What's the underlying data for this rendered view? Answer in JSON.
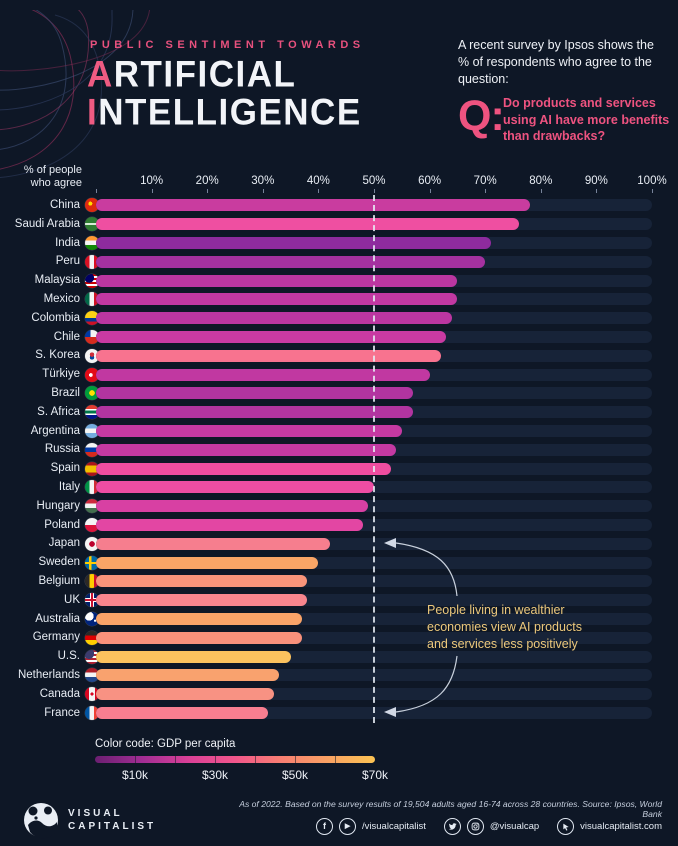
{
  "header": {
    "kicker": "PUBLIC SENTIMENT TOWARDS",
    "title_a": "A",
    "title_rest1": "RTIFICIAL",
    "title_i": "I",
    "title_rest2": "NTELLIGENCE",
    "intro": "A recent survey by Ipsos shows the % of respondents who agree to the question:",
    "q_label": "Q:",
    "question": "Do products and services using AI have more benefits than drawbacks?",
    "accent_pink": "#ee5380"
  },
  "chart_data": {
    "type": "bar",
    "orientation": "horizontal",
    "axis_label_line1": "% of people",
    "axis_label_line2": "who agree",
    "x_ticks": [
      "10%",
      "20%",
      "30%",
      "40%",
      "50%",
      "60%",
      "70%",
      "80%",
      "90%",
      "100%"
    ],
    "xlim": [
      0,
      100
    ],
    "reference_line_pct": 50,
    "grid": false,
    "track_color": "#172338",
    "annotation": "People living in wealthier economies view AI products and services less positively",
    "rows": [
      {
        "country": "China",
        "value": 78,
        "color": "#c93c9f",
        "flag": "radial-gradient(circle at 38% 40%, #ffde00 16%, rgba(0,0,0,0) 17%), #de2910"
      },
      {
        "country": "Saudi Arabia",
        "value": 76,
        "color": "#ef4fa1",
        "flag": "linear-gradient(180deg,#2f7d33 44%,#d7ecd7 44% 58%,#2f7d33 58%)"
      },
      {
        "country": "India",
        "value": 71,
        "color": "#8e2b9e",
        "flag": "linear-gradient(180deg,#ff9933 33%,#f4f4f4 33% 66%,#128807 66%)"
      },
      {
        "country": "Peru",
        "value": 70,
        "color": "#a531a0",
        "flag": "linear-gradient(90deg,#d91023 33%,#f4f4f4 33% 66%,#d91023 66%)"
      },
      {
        "country": "Malaysia",
        "value": 65,
        "color": "#bb36a1",
        "flag": "radial-gradient(circle at 30% 28%, #010066 34%, rgba(0,0,0,0) 35%), repeating-linear-gradient(180deg,#cc0001 0 2px,#ffffff 2px 4px)"
      },
      {
        "country": "Mexico",
        "value": 65,
        "color": "#c238a2",
        "flag": "linear-gradient(90deg,#006847 33%,#f4f4f4 33% 66%,#ce1126 66%)"
      },
      {
        "country": "Colombia",
        "value": 64,
        "color": "#bb36a1",
        "flag": "linear-gradient(180deg,#fcd116 50%,#003893 50% 75%,#ce1126 75%)"
      },
      {
        "country": "Chile",
        "value": 63,
        "color": "#c93aa2",
        "flag": "linear-gradient(180deg,rgba(0,0,0,0) 0 50%,#d52b1e 50%), linear-gradient(90deg,#0039a6 0 38%,#f4f4f4 38%)"
      },
      {
        "country": "S. Korea",
        "value": 62,
        "color": "#f8738f",
        "flag": "radial-gradient(circle at 50% 40%, #cd2e3a 20%, rgba(0,0,0,0) 21%), radial-gradient(circle at 50% 60%, #0047a0 20%, rgba(0,0,0,0) 21%), #f4f4f4"
      },
      {
        "country": "Türkiye",
        "value": 60,
        "color": "#c138a1",
        "flag": "radial-gradient(circle at 42% 50%, #ffffff 17%, rgba(0,0,0,0) 18%), #e30a17"
      },
      {
        "country": "Brazil",
        "value": 57,
        "color": "#b234a0",
        "flag": "radial-gradient(circle at 50% 50%, #ffdf00 28%, rgba(0,0,0,0) 29%), #009c3b"
      },
      {
        "country": "S. Africa",
        "value": 57,
        "color": "#b234a0",
        "flag": "linear-gradient(180deg,#e03c31 30%,#ffffff 30% 38%,#007749 38% 62%,#ffffff 62% 70%,#001489 70%)"
      },
      {
        "country": "Argentina",
        "value": 55,
        "color": "#c539a2",
        "flag": "linear-gradient(180deg,#74acdf 33%,#f4f4f4 33% 66%,#74acdf 66%)"
      },
      {
        "country": "Russia",
        "value": 54,
        "color": "#c439a2",
        "flag": "linear-gradient(180deg,#f4f4f4 33%,#0039a6 33% 66%,#d52b1e 66%)"
      },
      {
        "country": "Spain",
        "value": 53,
        "color": "#ef4da0",
        "flag": "linear-gradient(180deg,#aa151b 25%,#f1bf00 25% 75%,#aa151b 75%)"
      },
      {
        "country": "Italy",
        "value": 50,
        "color": "#ee4da3",
        "flag": "linear-gradient(90deg,#009246 33%,#f4f4f4 33% 66%,#ce2b37 66%)"
      },
      {
        "country": "Hungary",
        "value": 49,
        "color": "#d840a3",
        "flag": "linear-gradient(180deg,#cd2a3e 33%,#f4f4f4 33% 66%,#436f4d 66%)"
      },
      {
        "country": "Poland",
        "value": 48,
        "color": "#e346a3",
        "flag": "linear-gradient(180deg,#f4f4f4 50%,#dc143c 50%)"
      },
      {
        "country": "Japan",
        "value": 42,
        "color": "#f67e8e",
        "flag": "radial-gradient(circle at 50% 50%, #bc002d 28%, rgba(0,0,0,0) 29%), #f4f4f4"
      },
      {
        "country": "Sweden",
        "value": 40,
        "color": "#f9a566",
        "flag": "linear-gradient(90deg,rgba(0,0,0,0) 0 30%,#fecc00 30% 46%,rgba(0,0,0,0) 46%), linear-gradient(180deg,rgba(0,0,0,0) 0 42%,#fecc00 42% 58%,rgba(0,0,0,0) 58%), #006aa7"
      },
      {
        "country": "Belgium",
        "value": 38,
        "color": "#f9947a",
        "flag": "linear-gradient(90deg,#2d2926 33%,#ffcd00 33% 66%,#c8102e 66%)"
      },
      {
        "country": "UK",
        "value": 38,
        "color": "#f8858d",
        "flag": "linear-gradient(180deg,rgba(0,0,0,0) 0 44%,#c8102e 44% 56%,rgba(0,0,0,0) 56%), linear-gradient(90deg,rgba(0,0,0,0) 0 44%,#c8102e 44% 56%,rgba(0,0,0,0) 56%), linear-gradient(180deg,rgba(0,0,0,0) 0 36%,#ffffff 36% 64%,rgba(0,0,0,0) 64%), linear-gradient(90deg,rgba(0,0,0,0) 0 36%,#ffffff 36% 64%,rgba(0,0,0,0) 64%), #012169"
      },
      {
        "country": "Australia",
        "value": 37,
        "color": "#f9a368",
        "flag": "radial-gradient(circle at 30% 30%, #ffffff 32%, rgba(0,0,0,0) 33%), radial-gradient(circle at 72% 62%, #ffffff 8%, rgba(0,0,0,0) 9%), #00247d"
      },
      {
        "country": "Germany",
        "value": 37,
        "color": "#f9917b",
        "flag": "linear-gradient(180deg,#2d2926 33%,#dd0000 33% 66%,#ffce00 66%)"
      },
      {
        "country": "U.S.",
        "value": 35,
        "color": "#fbc25e",
        "flag": "radial-gradient(circle at 28% 26%, #3c3b6e 36%, rgba(0,0,0,0) 37%), repeating-linear-gradient(180deg,#b22234 0 2px,#ffffff 2px 4px)"
      },
      {
        "country": "Netherlands",
        "value": 33,
        "color": "#f9a26e",
        "flag": "linear-gradient(180deg,#ae1c28 33%,#f4f4f4 33% 66%,#21468b 66%)"
      },
      {
        "country": "Canada",
        "value": 32,
        "color": "#f89283",
        "flag": "radial-gradient(circle at 50% 50%, #d80621 16%, rgba(0,0,0,0) 17%), linear-gradient(90deg,#d80621 28%,#f4f4f4 28% 72%,#d80621 72%)"
      },
      {
        "country": "France",
        "value": 31,
        "color": "#f87e90",
        "flag": "linear-gradient(90deg,#0055a4 33%,#f4f4f4 33% 66%,#ef4135 66%)"
      }
    ]
  },
  "legend": {
    "title": "Color code: GDP per capita",
    "tick_labels": [
      "$10k",
      "$30k",
      "$50k",
      "$70k"
    ],
    "range_k": [
      0,
      70
    ],
    "gradient": [
      "#6b1f71",
      "#a12d94",
      "#d94097",
      "#f1568b",
      "#f87f72",
      "#f9a263",
      "#fbc353"
    ]
  },
  "footer": {
    "source": "As of 2022. Based on the survey results of 19,504 adults aged 16-74 across 28 countries. Source: Ipsos, World Bank",
    "logo_line1": "VISUAL",
    "logo_line2": "CAPITALIST",
    "social_handle_fb_yt": "/visualcapitalist",
    "social_handle_tw_ig": "@visualcap",
    "website": "visualcapitalist.com"
  }
}
